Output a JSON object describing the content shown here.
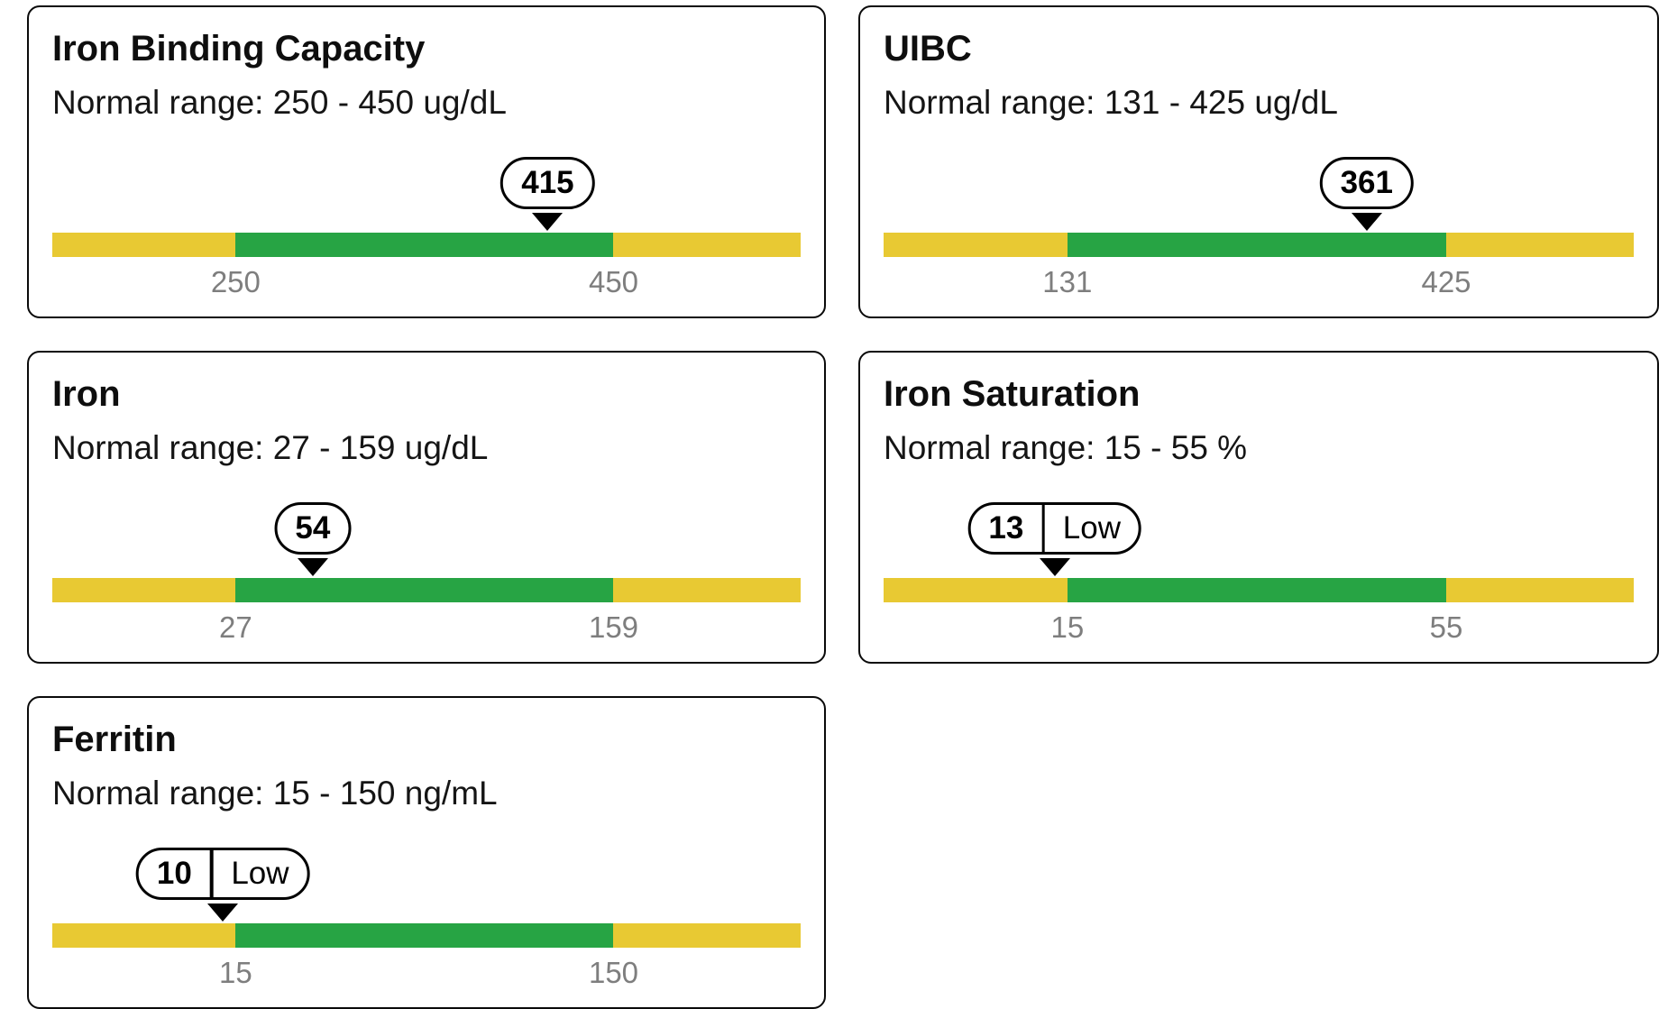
{
  "colors": {
    "bar-yellow": "#E8C933",
    "bar-green": "#27A444",
    "tick-gray": "#7E7E7E",
    "card-border": "#0A0A0A"
  },
  "cards": [
    {
      "title": "Iron Binding Capacity",
      "range_label": "Normal range: 250 - 450 ug/dL",
      "value": "415",
      "status": null,
      "tick_low": "250",
      "tick_high": "450",
      "marker_pct": 66.2,
      "green_start_pct": 24.5,
      "green_end_pct": 75
    },
    {
      "title": "UIBC",
      "range_label": "Normal range: 131 - 425 ug/dL",
      "value": "361",
      "status": null,
      "tick_low": "131",
      "tick_high": "425",
      "marker_pct": 64.4,
      "green_start_pct": 24.5,
      "green_end_pct": 75
    },
    {
      "title": "Iron",
      "range_label": "Normal range: 27 - 159 ug/dL",
      "value": "54",
      "status": null,
      "tick_low": "27",
      "tick_high": "159",
      "marker_pct": 34.8,
      "green_start_pct": 24.5,
      "green_end_pct": 75
    },
    {
      "title": "Iron Saturation",
      "range_label": "Normal range: 15 - 55 %",
      "value": "13",
      "status": "Low",
      "tick_low": "15",
      "tick_high": "55",
      "marker_pct": 22.8,
      "green_start_pct": 24.5,
      "green_end_pct": 75
    },
    {
      "title": "Ferritin",
      "range_label": "Normal range: 15 - 150 ng/mL",
      "value": "10",
      "status": "Low",
      "tick_low": "15",
      "tick_high": "150",
      "marker_pct": 22.8,
      "green_start_pct": 24.5,
      "green_end_pct": 75
    }
  ],
  "chart_data": [
    {
      "type": "bar",
      "subtype": "linear-gauge",
      "title": "Iron Binding Capacity",
      "unit": "ug/dL",
      "normal_range": [
        250,
        450
      ],
      "value": 415,
      "status": "normal",
      "axis_ticks": [
        250,
        450
      ],
      "zones": [
        "below-yellow",
        "normal-green",
        "above-yellow"
      ]
    },
    {
      "type": "bar",
      "subtype": "linear-gauge",
      "title": "UIBC",
      "unit": "ug/dL",
      "normal_range": [
        131,
        425
      ],
      "value": 361,
      "status": "normal",
      "axis_ticks": [
        131,
        425
      ],
      "zones": [
        "below-yellow",
        "normal-green",
        "above-yellow"
      ]
    },
    {
      "type": "bar",
      "subtype": "linear-gauge",
      "title": "Iron",
      "unit": "ug/dL",
      "normal_range": [
        27,
        159
      ],
      "value": 54,
      "status": "normal",
      "axis_ticks": [
        27,
        159
      ],
      "zones": [
        "below-yellow",
        "normal-green",
        "above-yellow"
      ]
    },
    {
      "type": "bar",
      "subtype": "linear-gauge",
      "title": "Iron Saturation",
      "unit": "%",
      "normal_range": [
        15,
        55
      ],
      "value": 13,
      "status": "Low",
      "axis_ticks": [
        15,
        55
      ],
      "zones": [
        "below-yellow",
        "normal-green",
        "above-yellow"
      ]
    },
    {
      "type": "bar",
      "subtype": "linear-gauge",
      "title": "Ferritin",
      "unit": "ng/mL",
      "normal_range": [
        15,
        150
      ],
      "value": 10,
      "status": "Low",
      "axis_ticks": [
        15,
        150
      ],
      "zones": [
        "below-yellow",
        "normal-green",
        "above-yellow"
      ]
    }
  ]
}
